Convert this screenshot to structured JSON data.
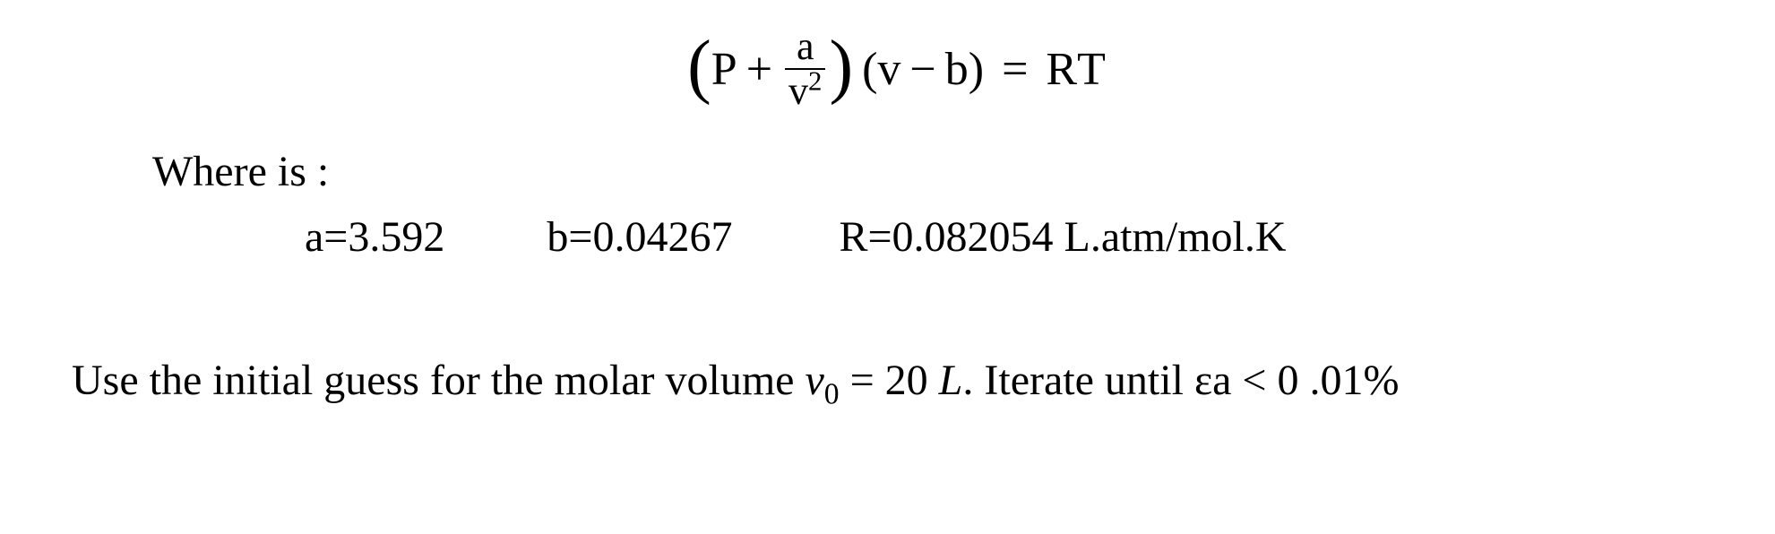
{
  "equation": {
    "P": "P",
    "plus": "+",
    "frac_num": "a",
    "frac_den_base": "v",
    "frac_den_exp": "2",
    "v": "v",
    "minus": "−",
    "b": "b",
    "equals": "=",
    "R": "R",
    "T": "T"
  },
  "where_label": "Where is :",
  "params": {
    "a": "a=3.592",
    "b": "b=0.04267",
    "R": "R=0.082054 L.atm/mol.K"
  },
  "instruction": {
    "part1": "Use the initial guess for the molar volume ",
    "v_base": "v",
    "v_sub": "0",
    "part2": " = 20 ",
    "L": "L",
    "part3": ". Iterate until εa < 0 .01%"
  },
  "style": {
    "font_family": "Times New Roman",
    "text_color": "#000000",
    "background_color": "#ffffff",
    "equation_fontsize": 52,
    "body_fontsize": 48,
    "fraction_fontsize": 44,
    "paren_fontsize": 80,
    "fraction_bar_thickness": 2.5
  }
}
